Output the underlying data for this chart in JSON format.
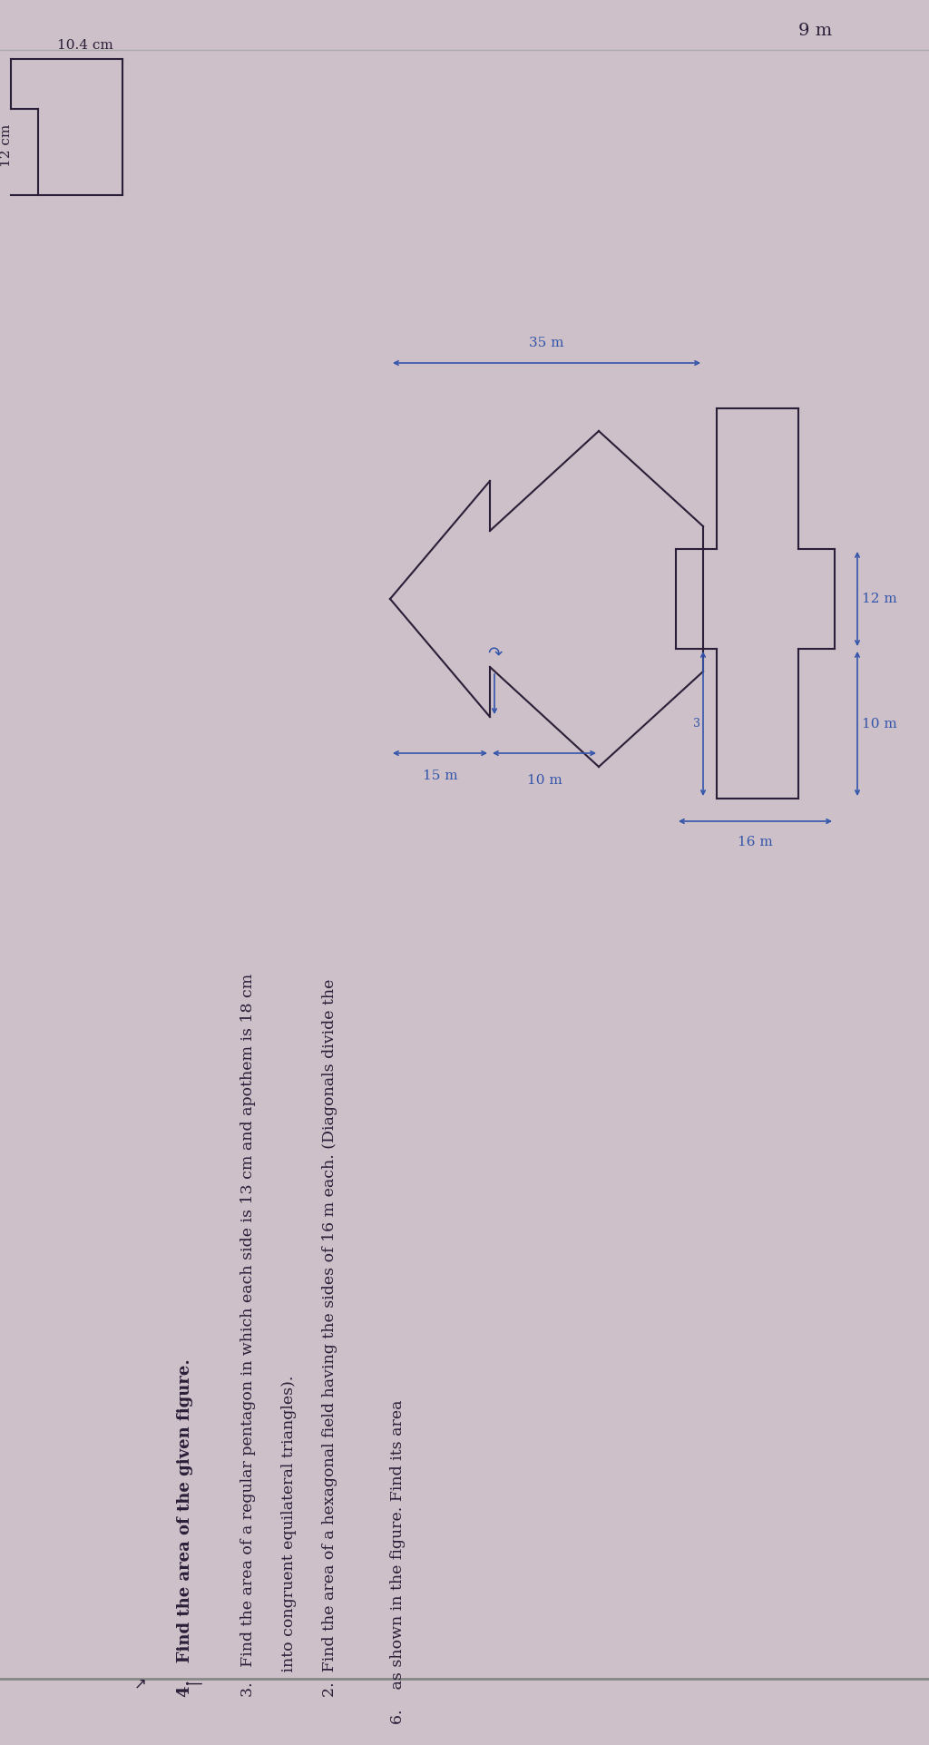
{
  "bg_color": "#cdc0c8",
  "text_color": "#2a1e38",
  "arrow_color": "#3355aa",
  "fig_width": 10.24,
  "fig_height": 19.23,
  "dpi": 100,
  "q2_line1": "2.  Find the area of a hexagonal field having the sides of 16 m each. (Diagonals divide the",
  "q2_line2": "     into congruent equilateral triangles).",
  "q3": "3.   Find the area of a regular pentagon in which each side is 13 cm and apothem is 18 cm",
  "q4": "4.   Find the area of the given figure.",
  "label_9m": "9 m",
  "label_10_4cm": "10.4 cm",
  "label_12cm": "12 cm",
  "label_15m": "15 m",
  "label_10m_h": "10 m",
  "label_35m": "35 m",
  "label_12m_v": "12 m",
  "label_10m_v": "10 m",
  "label_16m": "16 m",
  "label_3": "3"
}
